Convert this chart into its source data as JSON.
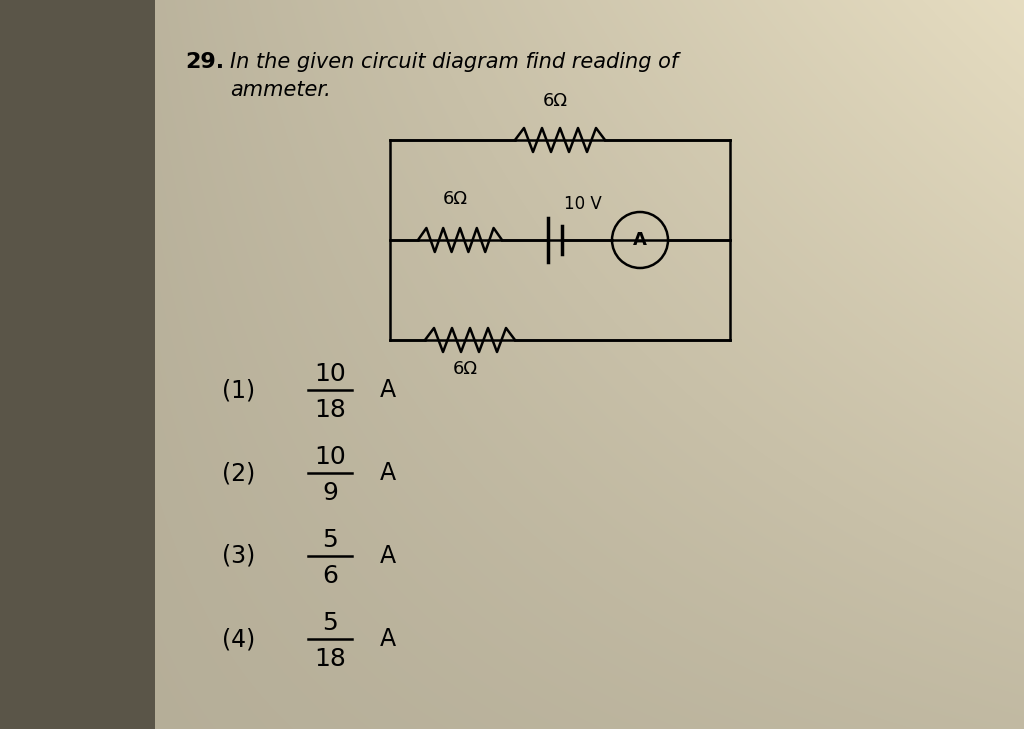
{
  "bg_color": "#c8c0a8",
  "question_number": "29.",
  "question_line1": "In the given circuit diagram find reading of",
  "question_line2": "ammeter.",
  "top_res_label": "6Ω",
  "mid_res_label": "6Ω",
  "bot_res_label": "6Ω",
  "battery_label": "10 V",
  "ammeter_label": "A",
  "choices": [
    {
      "num": "(1)",
      "numer": "10",
      "denom": "18",
      "unit": "A"
    },
    {
      "num": "(2)",
      "numer": "10",
      "denom": "9",
      "unit": "A"
    },
    {
      "num": "(3)",
      "numer": "5",
      "denom": "6",
      "unit": "A"
    },
    {
      "num": "(4)",
      "numer": "5",
      "denom": "18",
      "unit": "A"
    }
  ]
}
